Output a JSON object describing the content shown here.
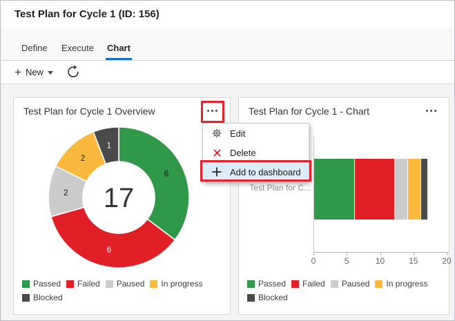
{
  "header": {
    "title": "Test Plan for Cycle 1 (ID: 156)"
  },
  "tabs": {
    "items": [
      {
        "label": "Define",
        "active": false
      },
      {
        "label": "Execute",
        "active": false
      },
      {
        "label": "Chart",
        "active": true
      }
    ]
  },
  "toolbar": {
    "new_button": {
      "label": "New"
    },
    "icons": [
      "plus-icon",
      "chevron-down-icon",
      "refresh-icon"
    ]
  },
  "widgets": [
    {
      "title": "Test Plan for Cycle 1 Overview",
      "menu_icon": "ellipsis-icon"
    },
    {
      "title": "Test Plan for Cycle 1 - Chart",
      "menu_icon": "ellipsis-icon"
    }
  ],
  "context_menu": {
    "items": [
      {
        "label": "Edit",
        "icon": "gear-icon",
        "highlighted": false
      },
      {
        "label": "Delete",
        "icon": "x-icon",
        "highlighted": false
      },
      {
        "label": "Add to dashboard",
        "icon": "plus-icon",
        "highlighted": true
      }
    ]
  },
  "annotations": {
    "color": "#e2242a",
    "targets": [
      "ellipsis-button-widget-1",
      "menu-item-add-to-dashboard"
    ]
  },
  "legend": {
    "items": [
      {
        "label": "Passed",
        "color": "#2f9949"
      },
      {
        "label": "Failed",
        "color": "#e01f26"
      },
      {
        "label": "Paused",
        "color": "#cbcbcb"
      },
      {
        "label": "In progress",
        "color": "#fab93d"
      },
      {
        "label": "Blocked",
        "color": "#4a4a4a"
      }
    ]
  },
  "chart_data": [
    {
      "type": "pie",
      "subtype": "donut",
      "title": "Test Plan for Cycle 1 Overview",
      "center_total": "17",
      "slices": [
        {
          "label": "Passed",
          "value": 6,
          "color": "#2f9949",
          "label_color": "#1a1a1a"
        },
        {
          "label": "Failed",
          "value": 6,
          "color": "#e01f26",
          "label_color": "#ffffff"
        },
        {
          "label": "Paused",
          "value": 2,
          "color": "#cbcbcb",
          "label_color": "#1a1a1a"
        },
        {
          "label": "In progress",
          "value": 2,
          "color": "#fab93d",
          "label_color": "#1a1a1a"
        },
        {
          "label": "Blocked",
          "value": 1,
          "color": "#4a4a4a",
          "label_color": "#ffffff"
        }
      ],
      "legend_position": "bottom"
    },
    {
      "type": "bar",
      "subtype": "horizontal-stacked",
      "title": "Test Plan for Cycle 1 - Chart",
      "category": "Test Plan for C...",
      "series": [
        {
          "name": "Passed",
          "value": 6,
          "color": "#2f9949"
        },
        {
          "name": "Failed",
          "value": 6,
          "color": "#e01f26"
        },
        {
          "name": "Paused",
          "value": 2,
          "color": "#cbcbcb"
        },
        {
          "name": "In progress",
          "value": 2,
          "color": "#fab93d"
        },
        {
          "name": "Blocked",
          "value": 1,
          "color": "#4a4a4a"
        }
      ],
      "x_ticks": [
        0,
        5,
        10,
        15,
        20
      ],
      "xlim": [
        0,
        20
      ],
      "grid": false,
      "legend_position": "bottom"
    }
  ]
}
